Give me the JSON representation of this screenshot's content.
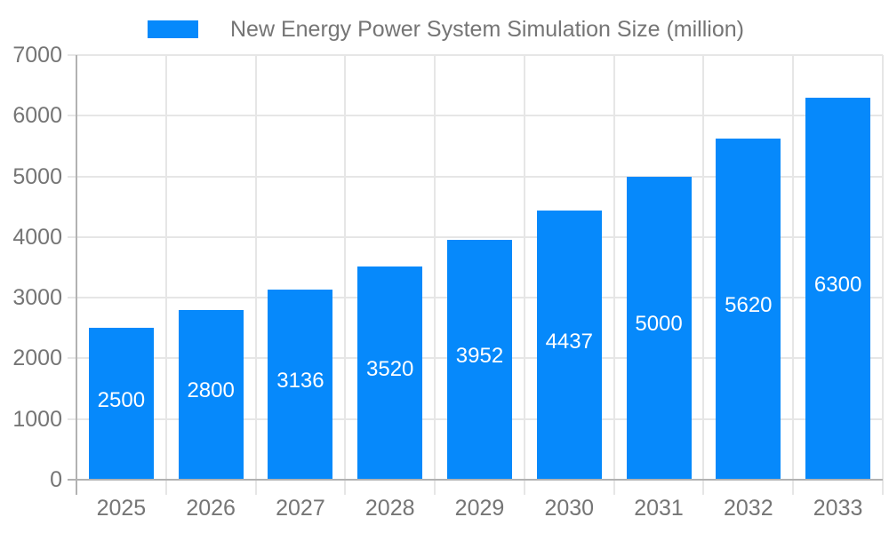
{
  "legend": {
    "label": "New Energy Power System Simulation Size (million)"
  },
  "chart_data": {
    "type": "bar",
    "title": "New Energy Power System Simulation Size (million)",
    "categories": [
      "2025",
      "2026",
      "2027",
      "2028",
      "2029",
      "2030",
      "2031",
      "2032",
      "2033"
    ],
    "values": [
      2500,
      2800,
      3136,
      3520,
      3952,
      4437,
      5000,
      5620,
      6300
    ],
    "xlabel": "",
    "ylabel": "",
    "ylim": [
      0,
      7000
    ],
    "ytick_interval": 1000,
    "ytick_labels": [
      "0",
      "1000",
      "2000",
      "3000",
      "4000",
      "5000",
      "6000",
      "7000"
    ],
    "grid": "on",
    "legend_position": "top-center",
    "value_labels": "inside-white",
    "colors": {
      "bar": "#0689FB",
      "grid": "#e6e6e6",
      "axis": "#b2b2b2",
      "tick_label": "#757575",
      "value_label": "#ffffff",
      "background": "#ffffff"
    }
  }
}
